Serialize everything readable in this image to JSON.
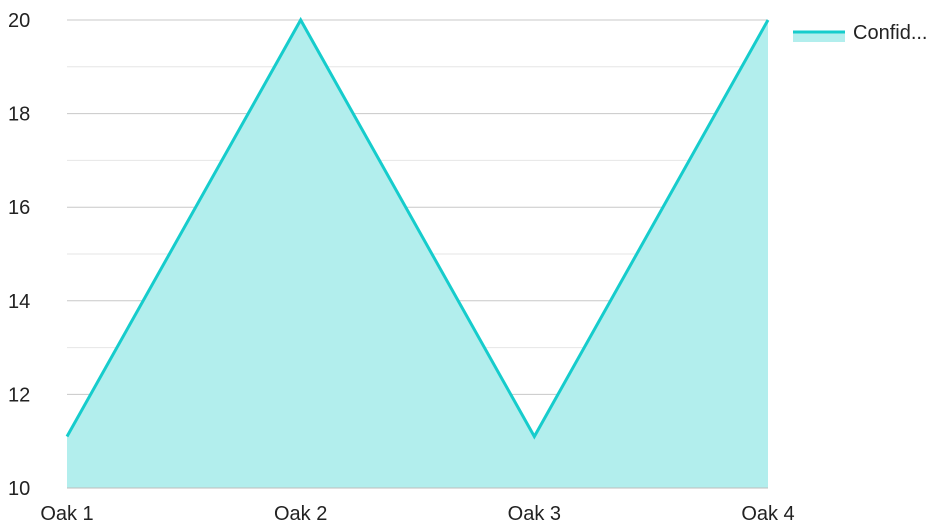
{
  "chart_data": {
    "type": "area",
    "title": "",
    "xlabel": "",
    "ylabel": "",
    "categories": [
      "Oak 1",
      "Oak 2",
      "Oak 3",
      "Oak 4"
    ],
    "series": [
      {
        "name": "Confid...",
        "values": [
          11.1,
          20,
          11.1,
          20
        ]
      }
    ],
    "ylim": [
      10,
      20
    ],
    "yticks": [
      10,
      12,
      14,
      16,
      18,
      20
    ],
    "grid": true,
    "legend_position": "top-right",
    "colors": {
      "line": "#16cccc",
      "fill": "#b2eeed",
      "grid_major": "#c8c8c8",
      "grid_minor": "#e6e6e6",
      "axis": "#bdbdbd",
      "text": "#222222"
    }
  }
}
